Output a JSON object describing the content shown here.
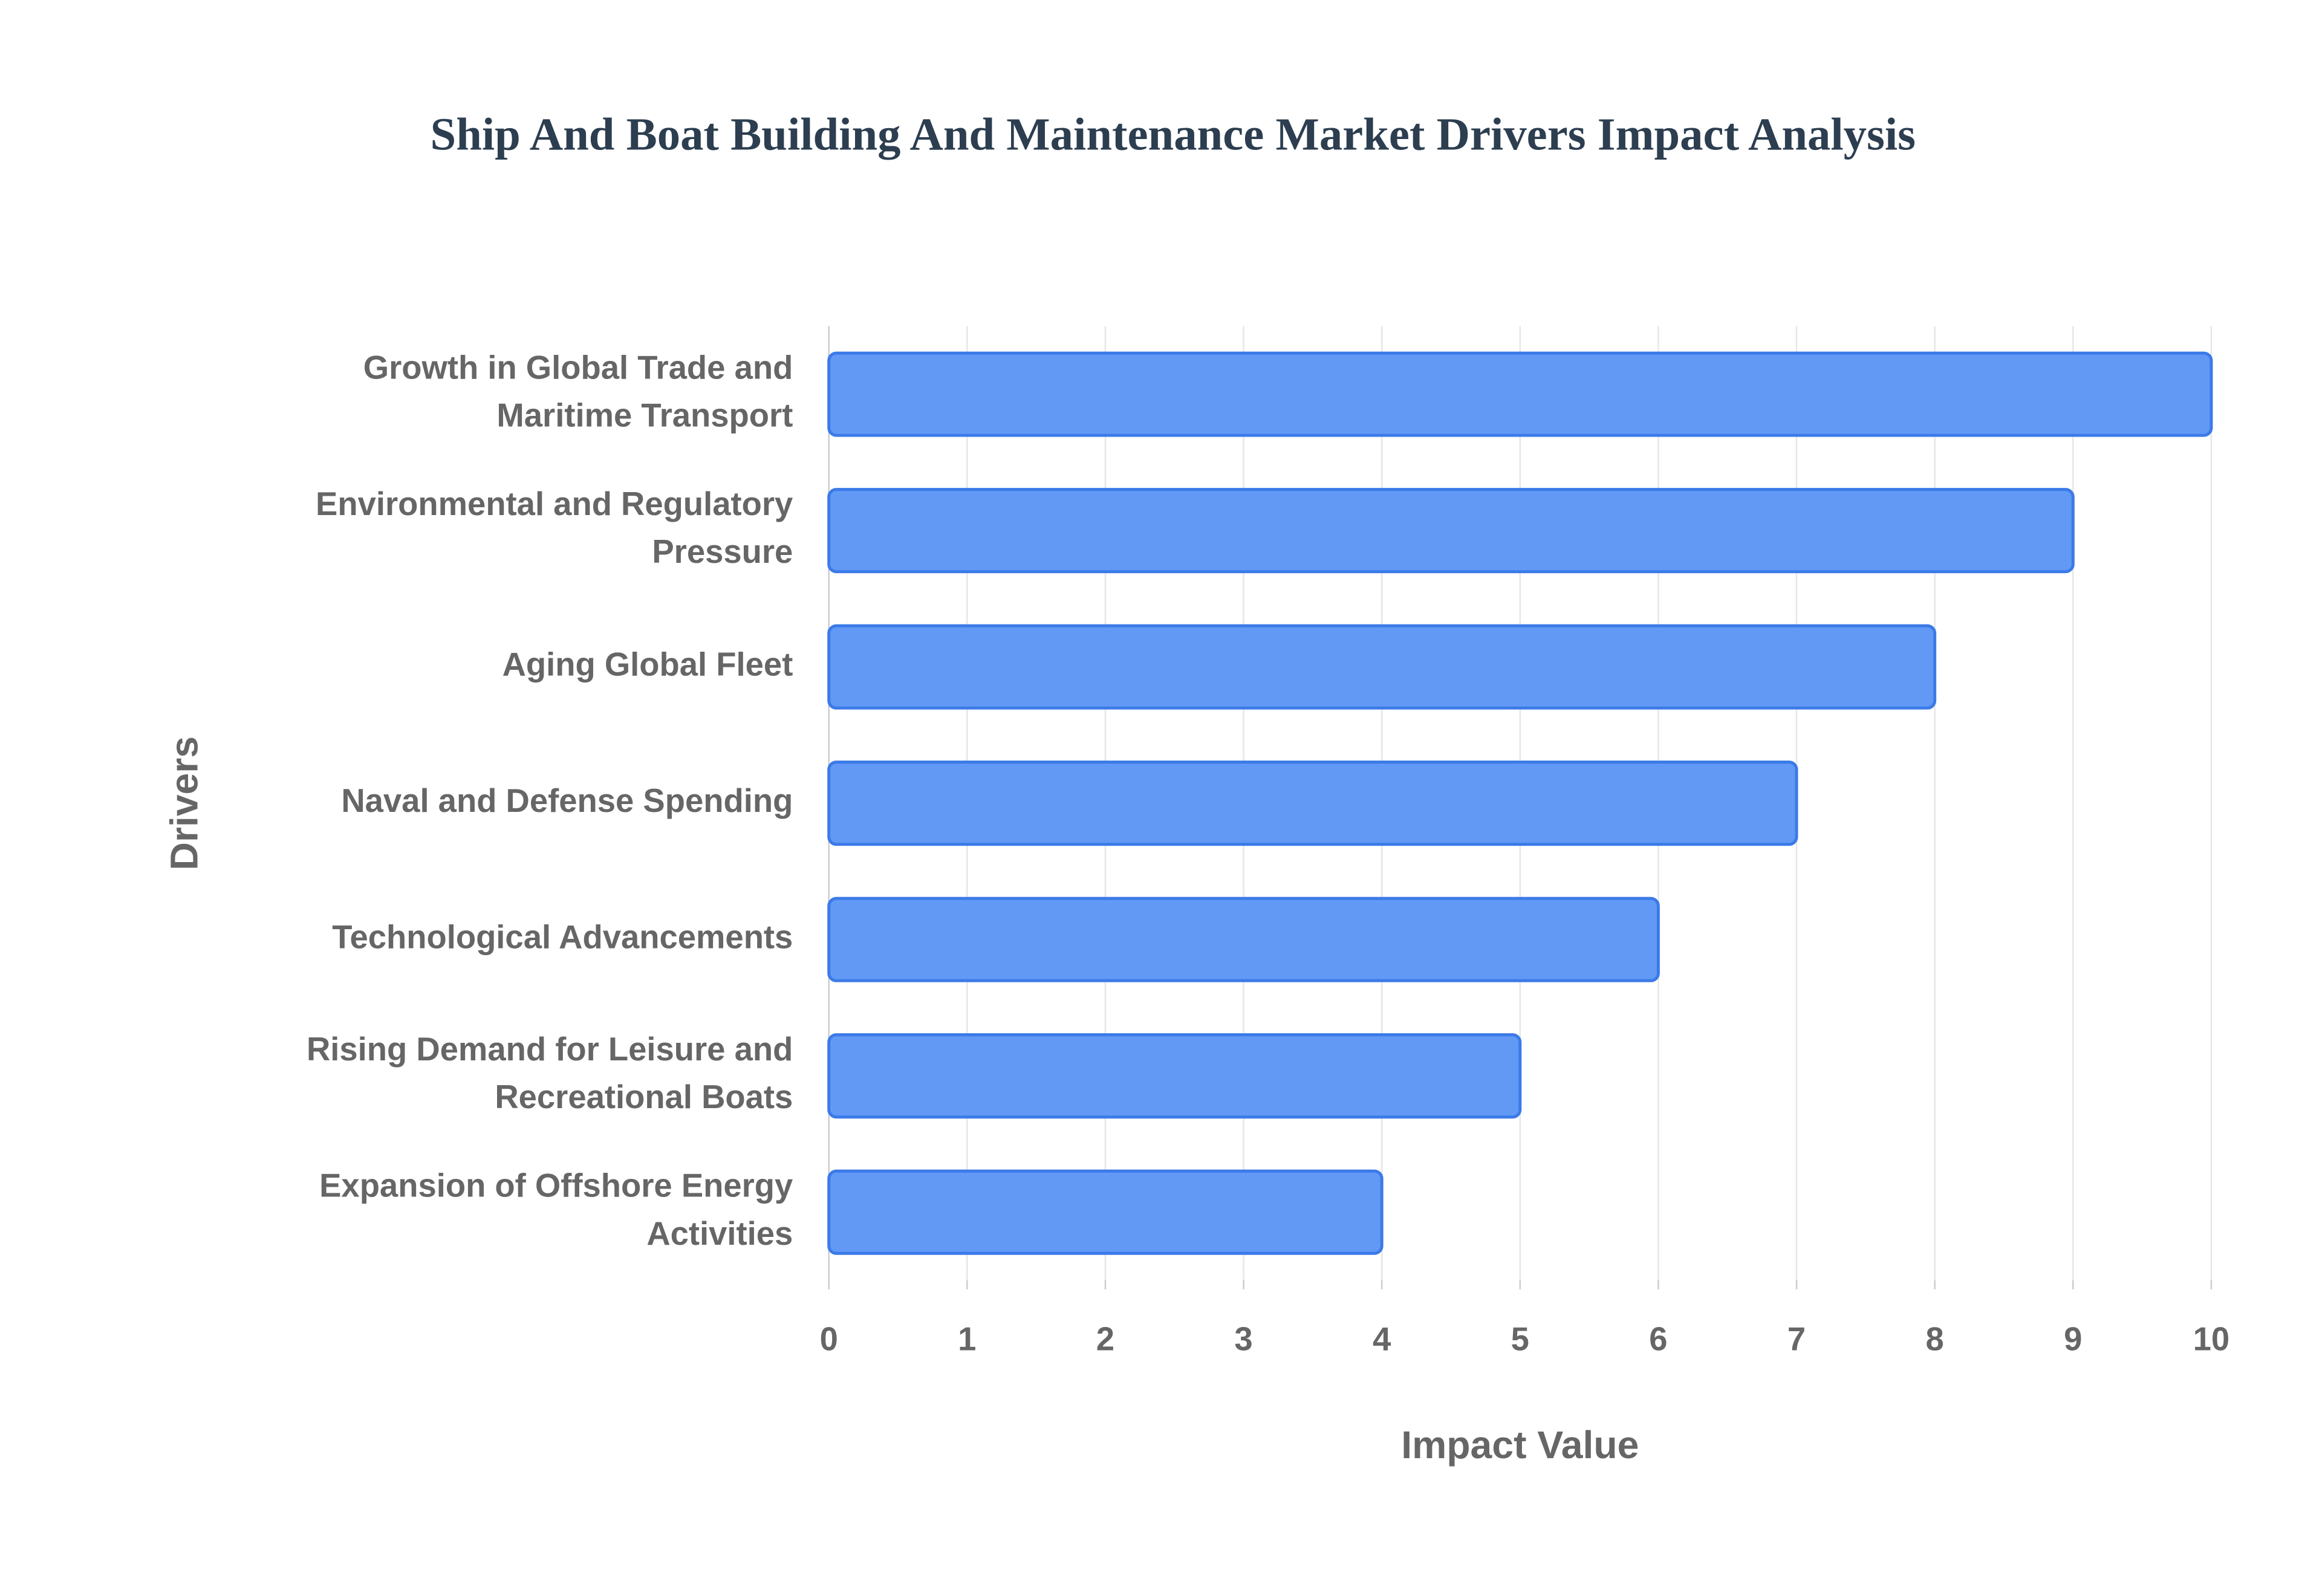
{
  "chart_data": {
    "type": "bar",
    "orientation": "horizontal",
    "title": "Ship And Boat Building And Maintenance Market Drivers Impact Analysis",
    "x_label": "Impact Value",
    "y_label": "Drivers",
    "categories": [
      "Growth in Global Trade and Maritime Transport",
      "Environmental and Regulatory Pressure",
      "Aging Global Fleet",
      "Naval and Defense Spending",
      "Technological Advancements",
      "Rising Demand for Leisure and Recreational Boats",
      "Expansion of Offshore Energy Activities"
    ],
    "values": [
      10,
      9,
      8,
      7,
      6,
      5,
      4
    ],
    "color": "#6199f5",
    "edge_color": "#3b7ae8",
    "xlim": [
      0,
      10
    ],
    "xticks": [
      0,
      1,
      2,
      3,
      4,
      5,
      6,
      7,
      8,
      9,
      10
    ],
    "grid": true
  }
}
